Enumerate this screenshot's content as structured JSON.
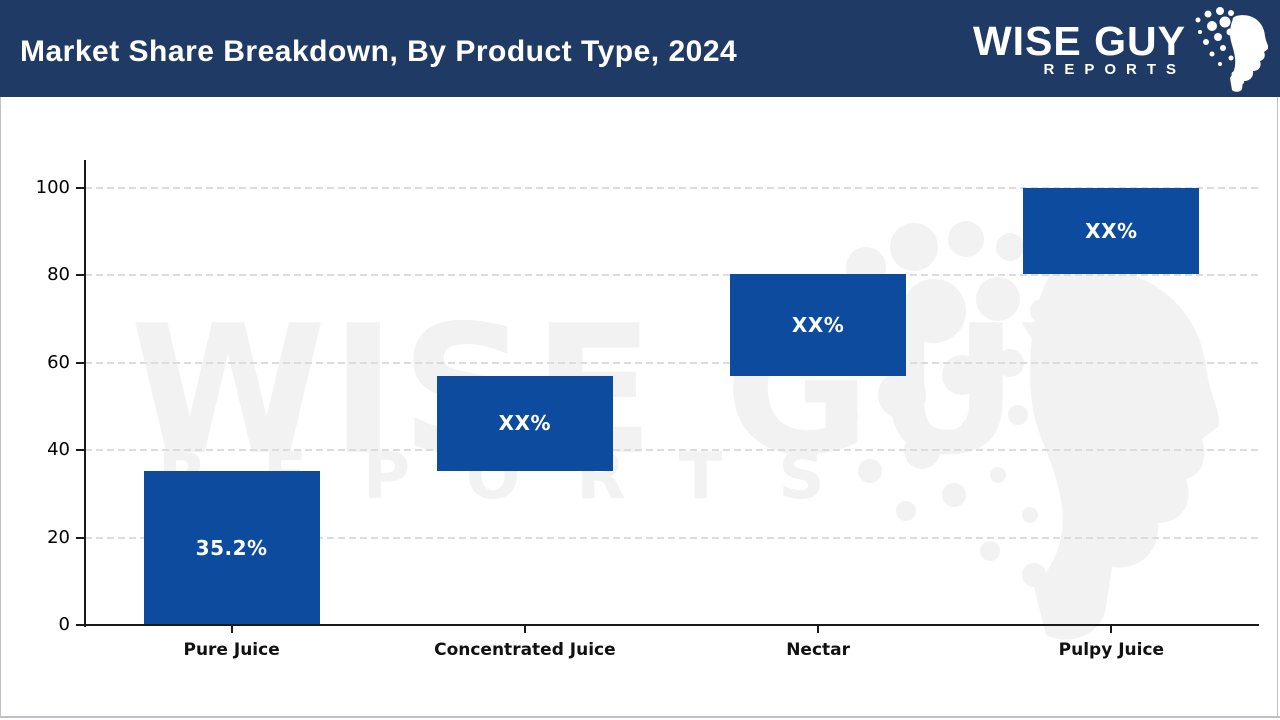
{
  "header": {
    "title": "Market Share Breakdown, By Product Type, 2024",
    "bg_color": "#203a66",
    "logo": {
      "line1": "WISE GUY",
      "line2": "REPORTS"
    }
  },
  "watermark": {
    "line1": "WISE GUY",
    "line2": "REPORTS"
  },
  "chart_data": {
    "type": "bar",
    "variant": "waterfall",
    "title": "Market Share Breakdown, By Product Type, 2024",
    "categories": [
      "Pure Juice",
      "Concentrated Juice",
      "Nectar",
      "Pulpy Juice"
    ],
    "segments": [
      {
        "category": "Pure Juice",
        "start": 0,
        "end": 35.2,
        "label": "35.2%"
      },
      {
        "category": "Concentrated Juice",
        "start": 35.2,
        "end": 57,
        "label": "XX%"
      },
      {
        "category": "Nectar",
        "start": 57,
        "end": 80.3,
        "label": "XX%"
      },
      {
        "category": "Pulpy Juice",
        "start": 80.3,
        "end": 100,
        "label": "XX%"
      }
    ],
    "ylim": [
      0,
      100
    ],
    "yticks": [
      0,
      20,
      40,
      60,
      80,
      100
    ],
    "grid": {
      "horizontal": true,
      "style": "dashed",
      "color": "#dcdcdc"
    },
    "legend": "none",
    "bar_color": "#0c4b9e",
    "bar_label_color": "#ffffff",
    "axis_color": "#1a1a1a",
    "tick_label_color": "#000000"
  }
}
